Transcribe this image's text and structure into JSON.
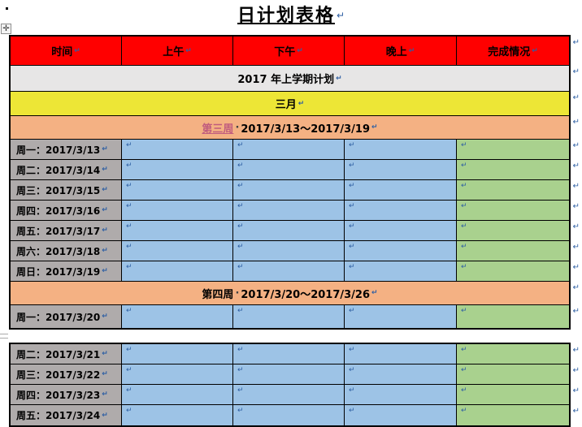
{
  "document": {
    "title": "日计划表格"
  },
  "icons": {
    "pilcrow": "↵",
    "move_handle": "✛"
  },
  "colors": {
    "header_red": "#FF0000",
    "semester_gray": "#E7E6E6",
    "month_yellow": "#EDE636",
    "week_orange": "#F4B183",
    "day_label_gray": "#AFABAB",
    "slot_blue": "#9DC3E6",
    "status_green": "#A9D18E",
    "week_link_pink": "#C05C7E",
    "mark_blue": "#2E5FA3"
  },
  "table": {
    "header": [
      "时间",
      "上午",
      "下午",
      "晚上",
      "完成情况"
    ],
    "header_names": [
      "time",
      "morning",
      "afternoon",
      "evening",
      "status"
    ],
    "rows": [
      {
        "type": "banner",
        "style": "semester",
        "text": "2017 年上学期计划"
      },
      {
        "type": "banner",
        "style": "month",
        "text": "三月"
      },
      {
        "type": "week",
        "name": "第三周",
        "separator": "·",
        "range": "2017/3/13～2017/3/19",
        "link": true
      },
      {
        "type": "day",
        "label": "周一：2017/3/13"
      },
      {
        "type": "day",
        "label": "周二：2017/3/14"
      },
      {
        "type": "day",
        "label": "周三：2017/3/15"
      },
      {
        "type": "day",
        "label": "周四：2017/3/16"
      },
      {
        "type": "day",
        "label": "周五：2017/3/17"
      },
      {
        "type": "day",
        "label": "周六：2017/3/18"
      },
      {
        "type": "day",
        "label": "周日：2017/3/19"
      },
      {
        "type": "week",
        "name": "第四周",
        "separator": "·",
        "range": "2017/3/20～2017/3/26",
        "link": false
      },
      {
        "type": "day",
        "label": "周一：2017/3/20",
        "tall": true
      },
      {
        "type": "page_break"
      },
      {
        "type": "day",
        "label": "周二：2017/3/21"
      },
      {
        "type": "day",
        "label": "周三：2017/3/22"
      },
      {
        "type": "day",
        "label": "周四：2017/3/23"
      },
      {
        "type": "day",
        "label": "周五：2017/3/24"
      }
    ]
  }
}
